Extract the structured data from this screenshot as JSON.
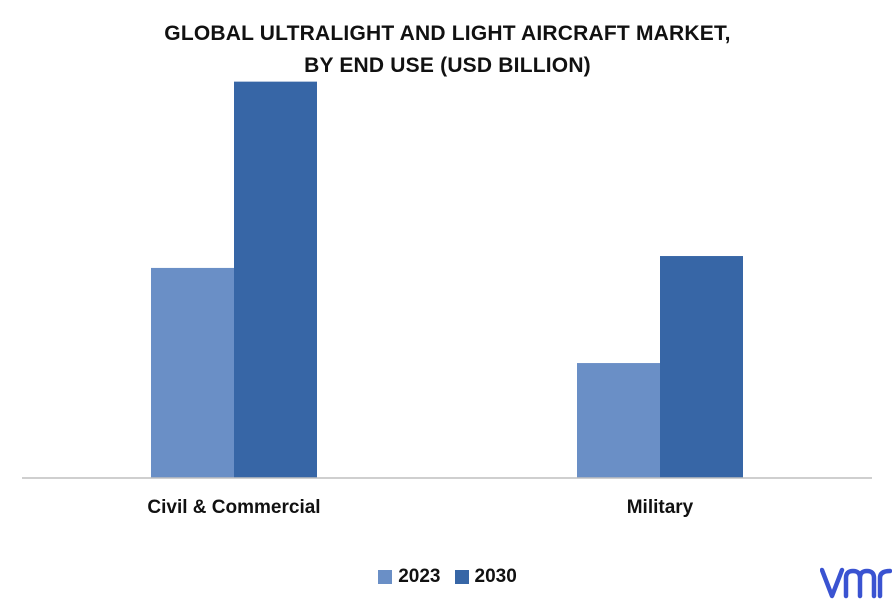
{
  "chart_data": {
    "type": "bar",
    "title_lines": [
      "GLOBAL ULTRALIGHT AND LIGHT AIRCRAFT MARKET,",
      "BY END USE (USD BILLION)"
    ],
    "categories": [
      "Civil & Commercial",
      "Military"
    ],
    "series": [
      {
        "name": "2023",
        "values": [
          5.3,
          2.9
        ],
        "color": "#6a8fc6"
      },
      {
        "name": "2030",
        "values": [
          10.0,
          5.6
        ],
        "color": "#3766a6"
      }
    ],
    "ylim": [
      0,
      11
    ],
    "grid": false,
    "legend_position": "bottom-center"
  },
  "logo": {
    "text": "vmr",
    "color": "#3a53d1"
  }
}
